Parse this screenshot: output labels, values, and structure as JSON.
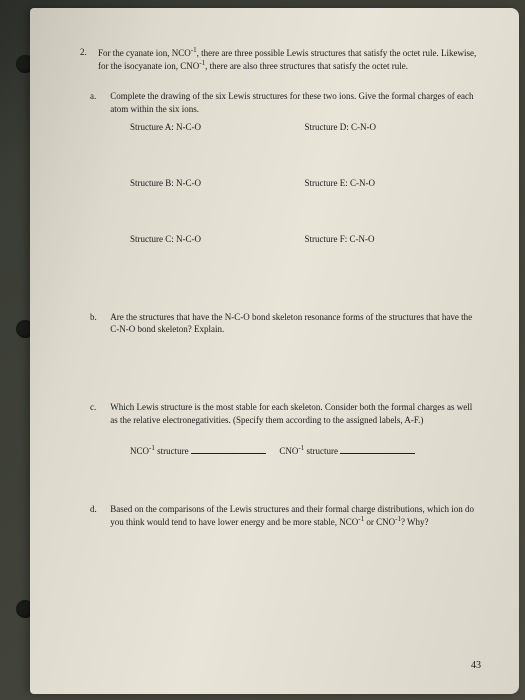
{
  "question": {
    "number": "2.",
    "text": "For the cyanate ion, NCO⁻¹, there are three possible Lewis structures that satisfy the octet rule. Likewise, for the isocyanate ion, CNO⁻¹, there are also three structures that satisfy the octet rule."
  },
  "partA": {
    "label": "a.",
    "text": "Complete the drawing of the six Lewis structures for these two ions. Give the formal charges of each atom within the six ions.",
    "structures": {
      "A": "Structure A:  N-C-O",
      "B": "Structure B:  N-C-O",
      "C": "Structure C:  N-C-O",
      "D": "Structure D:  C-N-O",
      "E": "Structure E:  C-N-O",
      "F": "Structure F:  C-N-O"
    }
  },
  "partB": {
    "label": "b.",
    "text": "Are the structures that have the N-C-O bond skeleton resonance forms of the structures that have the C-N-O bond skeleton? Explain."
  },
  "partC": {
    "label": "c.",
    "text": "Which Lewis structure is the most stable for each skeleton. Consider both the formal charges as well as the relative electronegativities. (Specify them according to the assigned labels, A-F.)",
    "blank1_label": "NCO⁻¹ structure",
    "blank2_label": "CNO⁻¹ structure"
  },
  "partD": {
    "label": "d.",
    "text": "Based on the comparisons of the Lewis structures and their formal charge distributions, which ion do you think would tend to have lower energy and be more stable, NCO⁻¹ or CNO⁻¹? Why?"
  },
  "pageNumber": "43"
}
